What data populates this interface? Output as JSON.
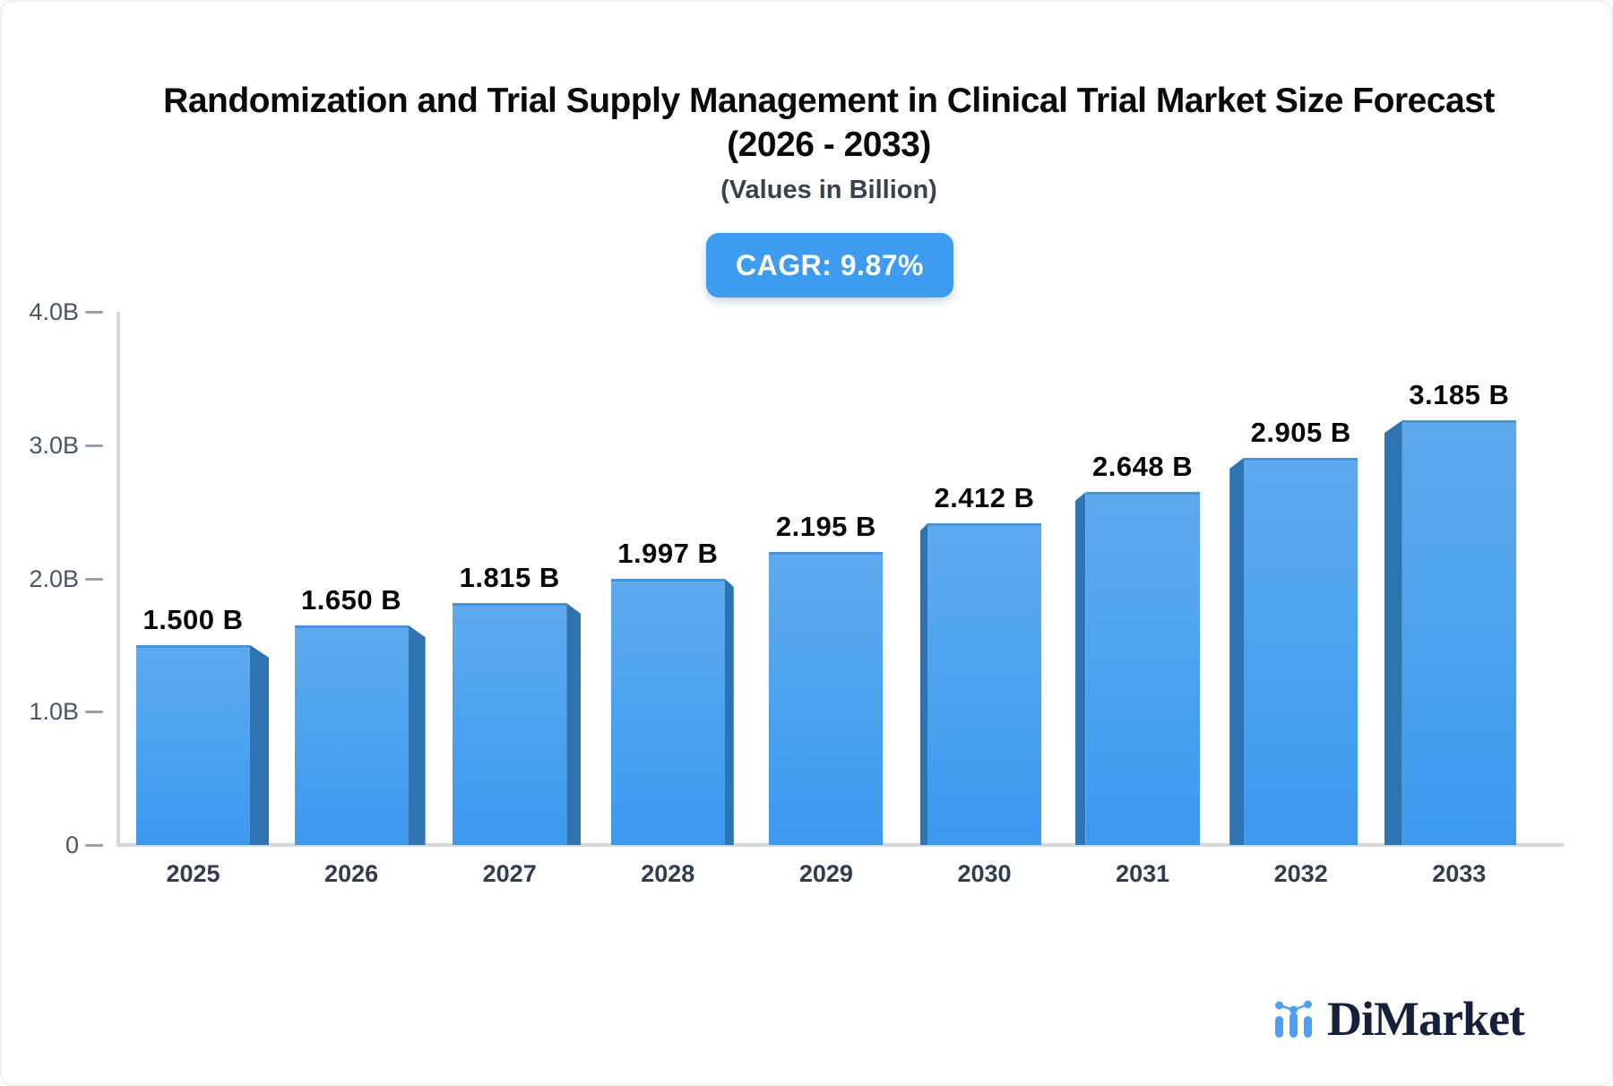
{
  "title": {
    "line1": "Randomization and Trial Supply Management in Clinical Trial Market Size Forecast",
    "line2": "(2026 - 2033)"
  },
  "subtitle": "(Values in Billion)",
  "badge": {
    "label": "CAGR: 9.87%"
  },
  "watermark": {
    "brand": "DiMarket",
    "icon": "bar-chart-logo-icon"
  },
  "chart_data": {
    "type": "bar",
    "title": "Randomization and Trial Supply Management in Clinical Trial Market Size Forecast (2026 - 2033)",
    "subtitle": "(Values in Billion)",
    "cagr": "9.87%",
    "categories": [
      "2025",
      "2026",
      "2027",
      "2028",
      "2029",
      "2030",
      "2031",
      "2032",
      "2033"
    ],
    "values": [
      1.5,
      1.65,
      1.815,
      1.997,
      2.195,
      2.412,
      2.648,
      2.905,
      3.185
    ],
    "value_labels": [
      "1.500 B",
      "1.650 B",
      "1.815 B",
      "1.997 B",
      "2.195 B",
      "2.412 B",
      "2.648 B",
      "2.905 B",
      "3.185 B"
    ],
    "xlabel": "",
    "ylabel": "",
    "ylim": [
      0,
      4
    ],
    "yticks": [
      {
        "value": 4,
        "label": "4.0B"
      },
      {
        "value": 3,
        "label": "3.0B"
      },
      {
        "value": 2,
        "label": "2.0B"
      },
      {
        "value": 1,
        "label": "1.0B"
      },
      {
        "value": 0,
        "label": "0"
      }
    ],
    "grid": "off",
    "legend": "none",
    "colors": {
      "bar_face_top": "#5fa9ee",
      "bar_face_bottom": "#3d99f0",
      "bar_side": "#2e74b2",
      "badge_bg": "#3d9bf0",
      "axis_line": "#d3d7dd",
      "label_text": "#060708",
      "brand_text": "#15213b",
      "brand_blue": "#4d9ff2"
    }
  }
}
